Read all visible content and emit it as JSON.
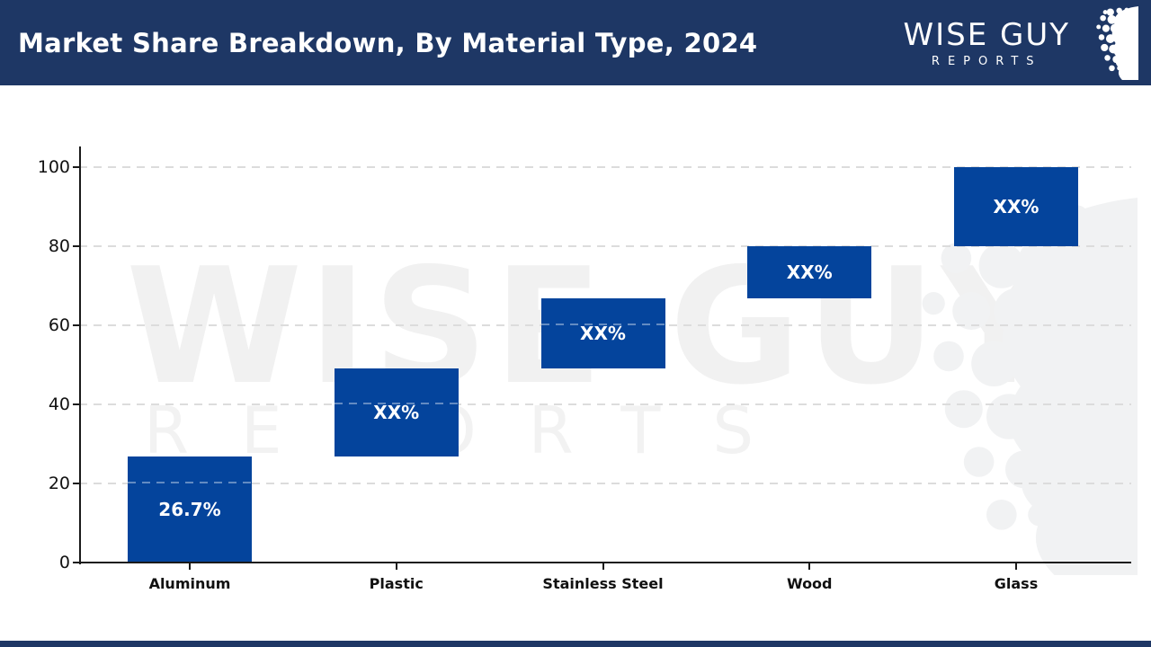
{
  "header": {
    "title": "Market Share Breakdown, By Material Type, 2024",
    "background": "#1e3765",
    "logo": {
      "line1": "WISE GUY",
      "line2": "REPORTS"
    }
  },
  "footer": {
    "background": "#1e3765"
  },
  "watermark": {
    "line1": "WISE GUY",
    "line2": "REPORTS"
  },
  "chart_data": {
    "type": "bar",
    "subtype": "waterfall-floating-bars",
    "title": "Market Share Breakdown, By Material Type, 2024",
    "categories": [
      "Aluminum",
      "Plastic",
      "Stainless Steel",
      "Wood",
      "Glass"
    ],
    "segments": [
      {
        "category": "Aluminum",
        "start": 0,
        "end": 26.7,
        "label": "26.7%"
      },
      {
        "category": "Plastic",
        "start": 26.7,
        "end": 49.0,
        "label": "XX%"
      },
      {
        "category": "Stainless Steel",
        "start": 49.0,
        "end": 66.6,
        "label": "XX%"
      },
      {
        "category": "Wood",
        "start": 66.6,
        "end": 80.0,
        "label": "XX%"
      },
      {
        "category": "Glass",
        "start": 80.0,
        "end": 100.0,
        "label": "XX%"
      }
    ],
    "xlabel": "",
    "ylabel": "",
    "yticks": [
      0,
      20,
      40,
      60,
      80,
      100
    ],
    "ytick_labels": [
      "0",
      "20",
      "40",
      "60",
      "80",
      "100"
    ],
    "ylim": [
      0,
      105
    ],
    "grid": "horizontal-dashed",
    "legend": "none",
    "colors": {
      "bar": "#04449c",
      "bar_label": "#ffffff",
      "grid_line": "#dcdcdc",
      "axis": "#1a1a1a",
      "tick_text": "#111111",
      "watermark": "#f1f1f1"
    }
  }
}
